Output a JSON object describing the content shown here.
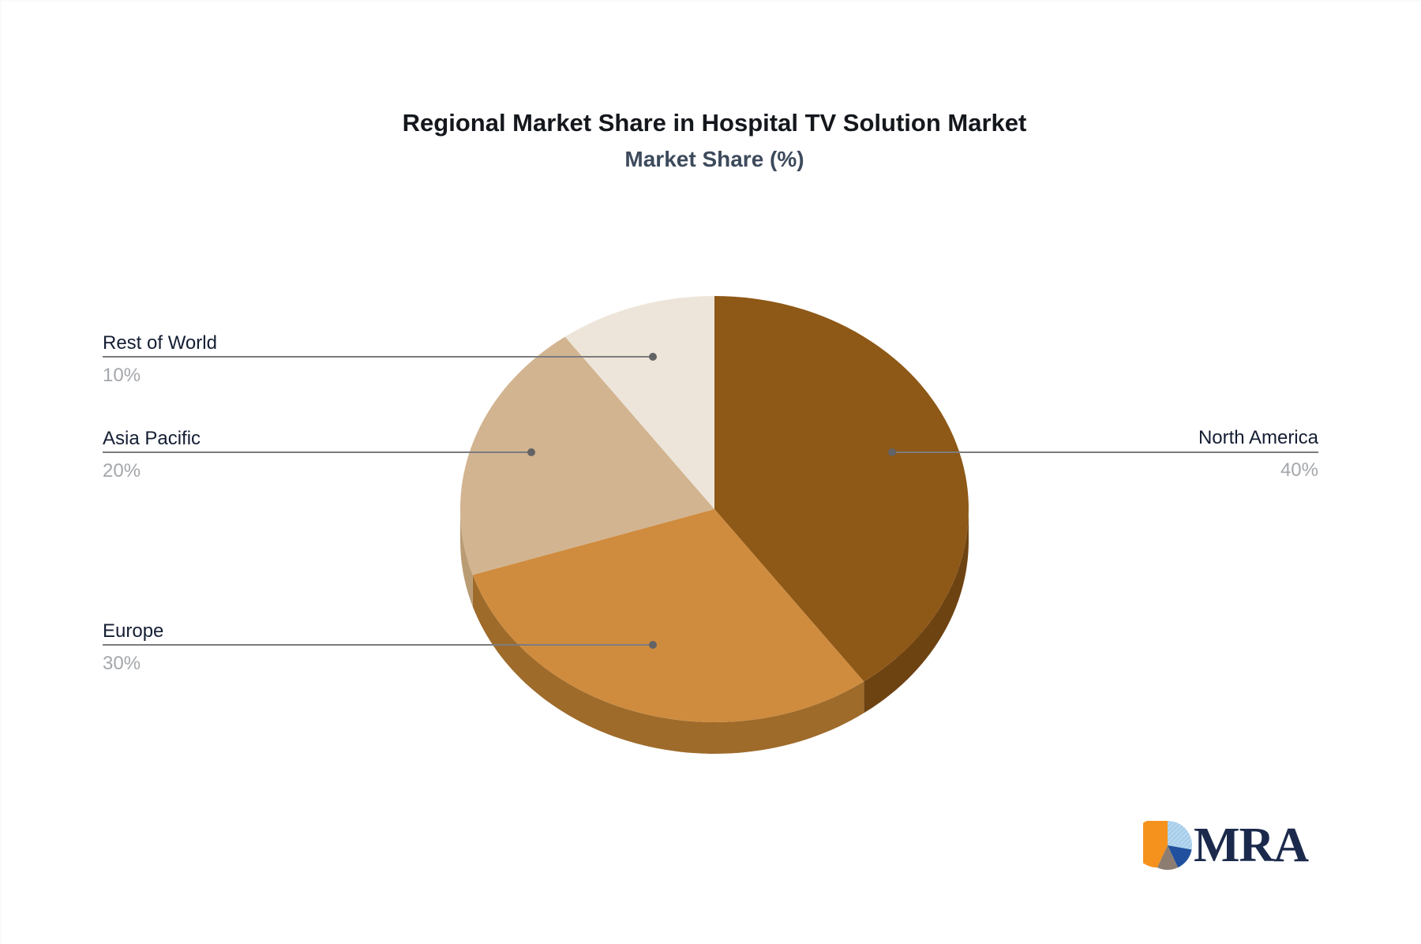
{
  "title": "Regional Market Share in Hospital TV Solution Market",
  "subtitle": "Market Share (%)",
  "chart_data": {
    "type": "pie",
    "title": "Regional Market Share in Hospital TV Solution Market",
    "subtitle": "Market Share (%)",
    "unit": "%",
    "style": "3d",
    "start_angle_deg": 0,
    "direction": "clockwise",
    "legend_position": "none",
    "labels": "leader-lines-with-percent",
    "slices": [
      {
        "label": "North America",
        "value": 40,
        "pct": "40%",
        "color": "#8E5817",
        "side_color": "#6E4312",
        "label_side": "right"
      },
      {
        "label": "Europe",
        "value": 30,
        "pct": "30%",
        "color": "#CF8C3E",
        "side_color": "#9E6B2B",
        "label_side": "left"
      },
      {
        "label": "Asia Pacific",
        "value": 20,
        "pct": "20%",
        "color": "#D2B490",
        "side_color": "#BA9C74",
        "label_side": "left"
      },
      {
        "label": "Rest of World",
        "value": 10,
        "pct": "10%",
        "color": "#EDE5D9",
        "side_color": "#D8CDBD",
        "label_side": "left"
      }
    ]
  },
  "colors": {
    "background": "#FFFFFF",
    "title": "#14171C",
    "subtitle": "#3D4A5C",
    "label_text": "#141E33",
    "value_text": "#A3A7AB",
    "leader_line": "#7C7C7E",
    "leader_dot": "#636366"
  },
  "logo": {
    "brand": "MRA",
    "icon": "pie-chart-logo-icon",
    "icon_colors": {
      "orange": "#F5921E",
      "light_blue": "#A7CEEB",
      "light_blue_hatch": "#CFE4F4",
      "dark_blue": "#20509E",
      "gray_brown": "#8D7D70"
    },
    "text_color": "#1B2A4C"
  }
}
